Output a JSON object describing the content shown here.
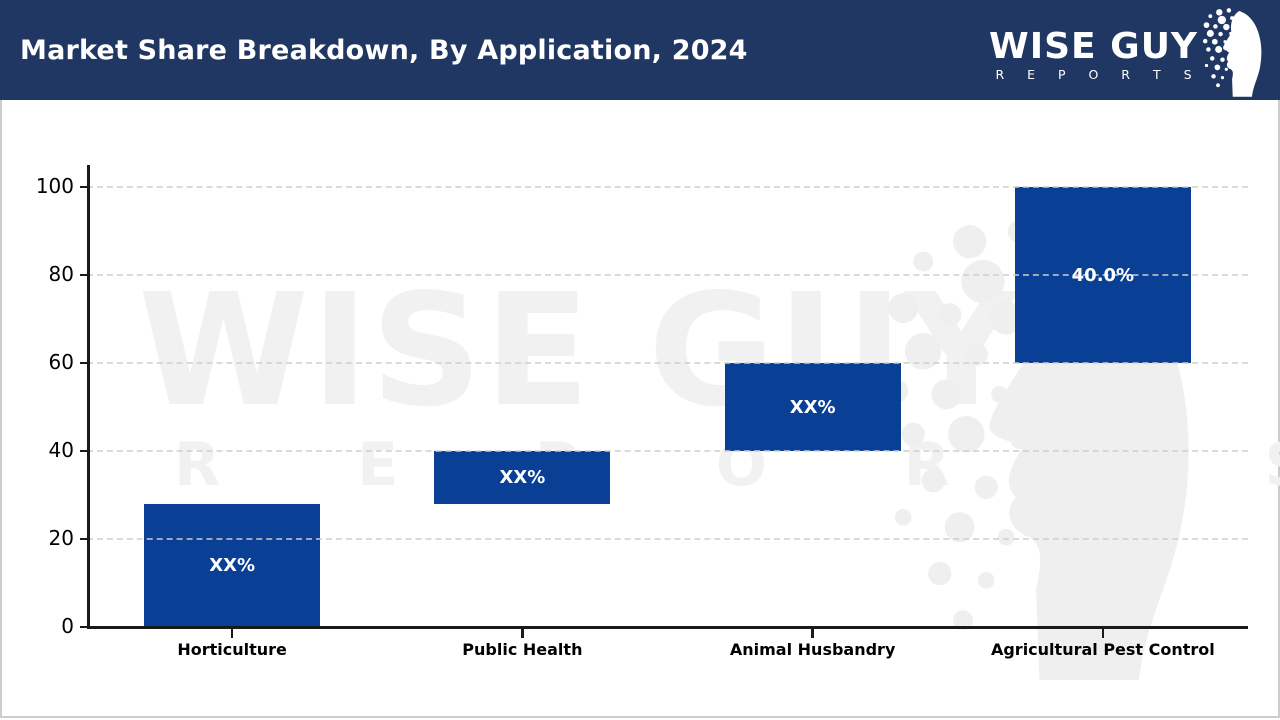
{
  "header": {
    "title": "Market Share Breakdown, By Application, 2024",
    "logo": {
      "line1": "WISE GUY",
      "line2": "R E P O R T S"
    }
  },
  "watermark": {
    "line1": "WISE GUY",
    "line2": "R E P O R T S"
  },
  "colors": {
    "header_bg": "#203763",
    "bar": "#0A3F96",
    "bar_label": "#ffffff",
    "axis": "#1a1a1a",
    "grid": "#cdcdcd",
    "watermark": "#f1f1f1"
  },
  "chart_data": {
    "type": "bar",
    "subtype": "floating-waterfall",
    "title": "Market Share Breakdown, By Application, 2024",
    "categories": [
      "Horticulture",
      "Public Health",
      "Animal Husbandry",
      "Agricultural Pest Control"
    ],
    "bars": [
      {
        "category": "Horticulture",
        "start": 0,
        "end": 28,
        "value": 28,
        "label": "XX%"
      },
      {
        "category": "Public Health",
        "start": 28,
        "end": 40,
        "value": 12,
        "label": "XX%"
      },
      {
        "category": "Animal Husbandry",
        "start": 40,
        "end": 60,
        "value": 20,
        "label": "XX%"
      },
      {
        "category": "Agricultural Pest Control",
        "start": 60,
        "end": 100,
        "value": 40,
        "label": "40.0%"
      }
    ],
    "xlabel": "",
    "ylabel": "",
    "ylim": [
      0,
      105
    ],
    "yticks": [
      0,
      20,
      40,
      60,
      80,
      100
    ],
    "grid": "horizontal-dashed",
    "legend": "none",
    "bar_color": "#0A3F96",
    "label_color": "#ffffff"
  }
}
